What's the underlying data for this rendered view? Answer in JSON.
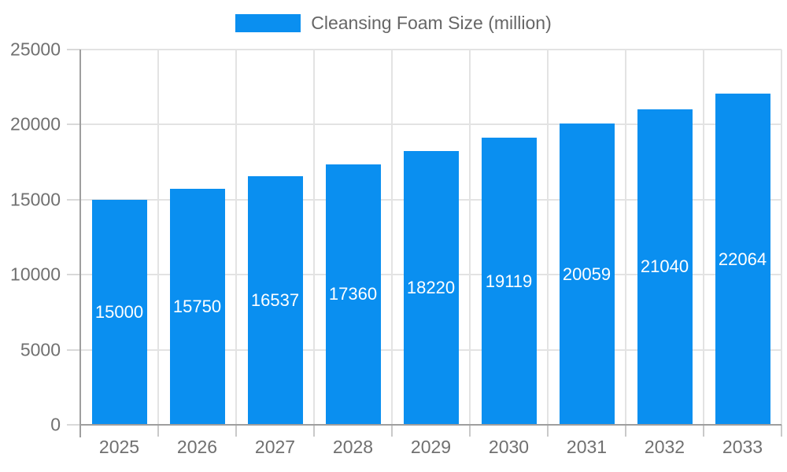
{
  "legend": {
    "label": "Cleansing Foam Size (million)"
  },
  "chart_data": {
    "type": "bar",
    "title": "Cleansing Foam Size (million)",
    "series_name": "Cleansing Foam Size (million)",
    "categories": [
      "2025",
      "2026",
      "2027",
      "2028",
      "2029",
      "2030",
      "2031",
      "2032",
      "2033"
    ],
    "values": [
      15000,
      15750,
      16537,
      17360,
      18220,
      19119,
      20059,
      21040,
      22064
    ],
    "xlabel": "",
    "ylabel": "",
    "ylim": [
      0,
      25000
    ],
    "yticks": [
      0,
      5000,
      10000,
      15000,
      20000,
      25000
    ],
    "grid": true,
    "legend_position": "top",
    "bar_color": "#0A8FF0",
    "value_label_color": "#FFFFFF",
    "axis_text_color": "#707070",
    "legend_text_color": "#666666",
    "grid_color": "#E3E3E3",
    "axis_line_color": "#9E9E9E",
    "background_color": "#FFFFFF"
  }
}
